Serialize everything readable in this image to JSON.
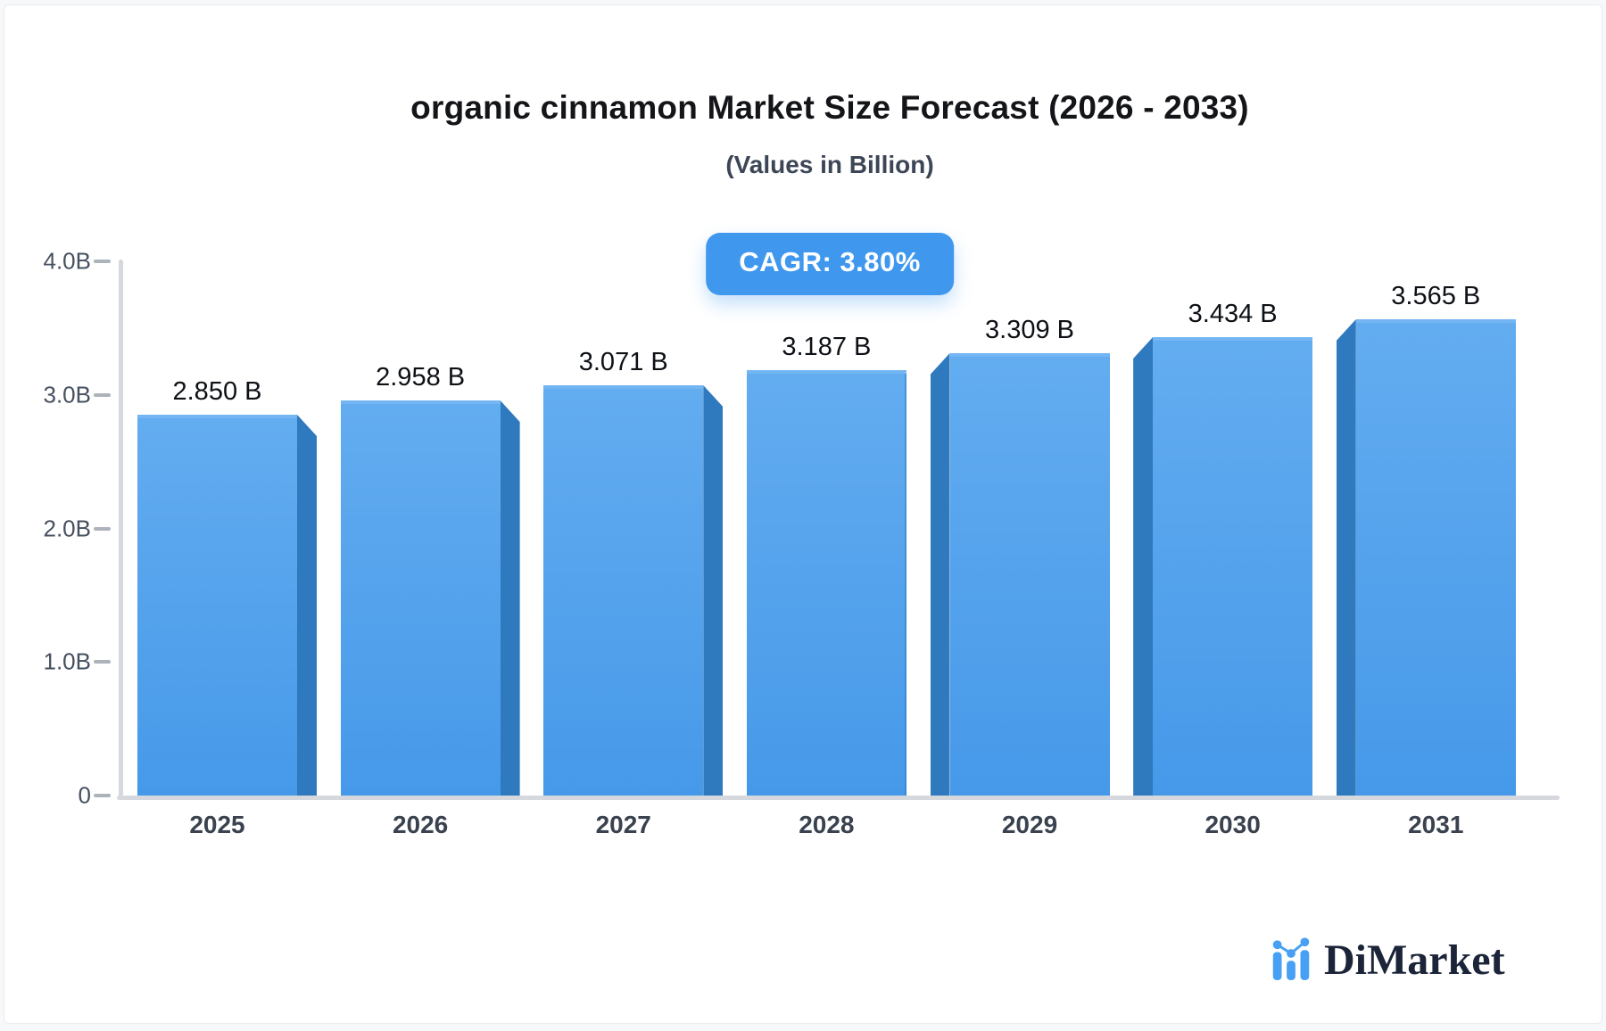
{
  "page": {
    "background": "#f6f8fa",
    "card_background": "#ffffff",
    "card_border": "#eaecf0"
  },
  "header": {
    "title": "organic cinnamon Market Size Forecast (2026 - 2033)",
    "subtitle": "(Values in Billion)"
  },
  "badge": {
    "label": "CAGR: 3.80%",
    "background": "#3f98ee",
    "text_color": "#ffffff"
  },
  "chart_data": {
    "type": "bar",
    "title": "organic cinnamon Market Size Forecast (2026 - 2033)",
    "subtitle": "(Values in Billion)",
    "unit": "Billion",
    "cagr": "3.80%",
    "categories": [
      "2025",
      "2026",
      "2027",
      "2028",
      "2029",
      "2030",
      "2031"
    ],
    "values": [
      2.85,
      2.958,
      3.071,
      3.187,
      3.309,
      3.434,
      3.565
    ],
    "value_labels": [
      "2.850 B",
      "2.958 B",
      "3.071 B",
      "3.187 B",
      "3.309 B",
      "3.434 B",
      "3.565 B"
    ],
    "ylim": [
      0,
      4.0
    ],
    "y_tick_labels": [
      "0",
      "1.0B",
      "2.0B",
      "3.0B",
      "4.0B"
    ],
    "grid": false,
    "legend": false,
    "bar_style": "3d-pseudo",
    "colors": {
      "bar_face_top": "#63acf0",
      "bar_face_bottom": "#4699e9",
      "bar_top_strip": "#73b6f3",
      "bar_side": "#2f79be",
      "axis_line": "#d5d8dc",
      "tick_dash": "#adb3bb",
      "axis_text": "#46505f",
      "value_text": "#0d1116",
      "category_text": "#39424e"
    }
  },
  "logo": {
    "text": "DiMarket",
    "icon": "dimarket-bar-chart-logo-icon",
    "text_color": "#1b2438",
    "icon_color": "#47a0f3"
  }
}
